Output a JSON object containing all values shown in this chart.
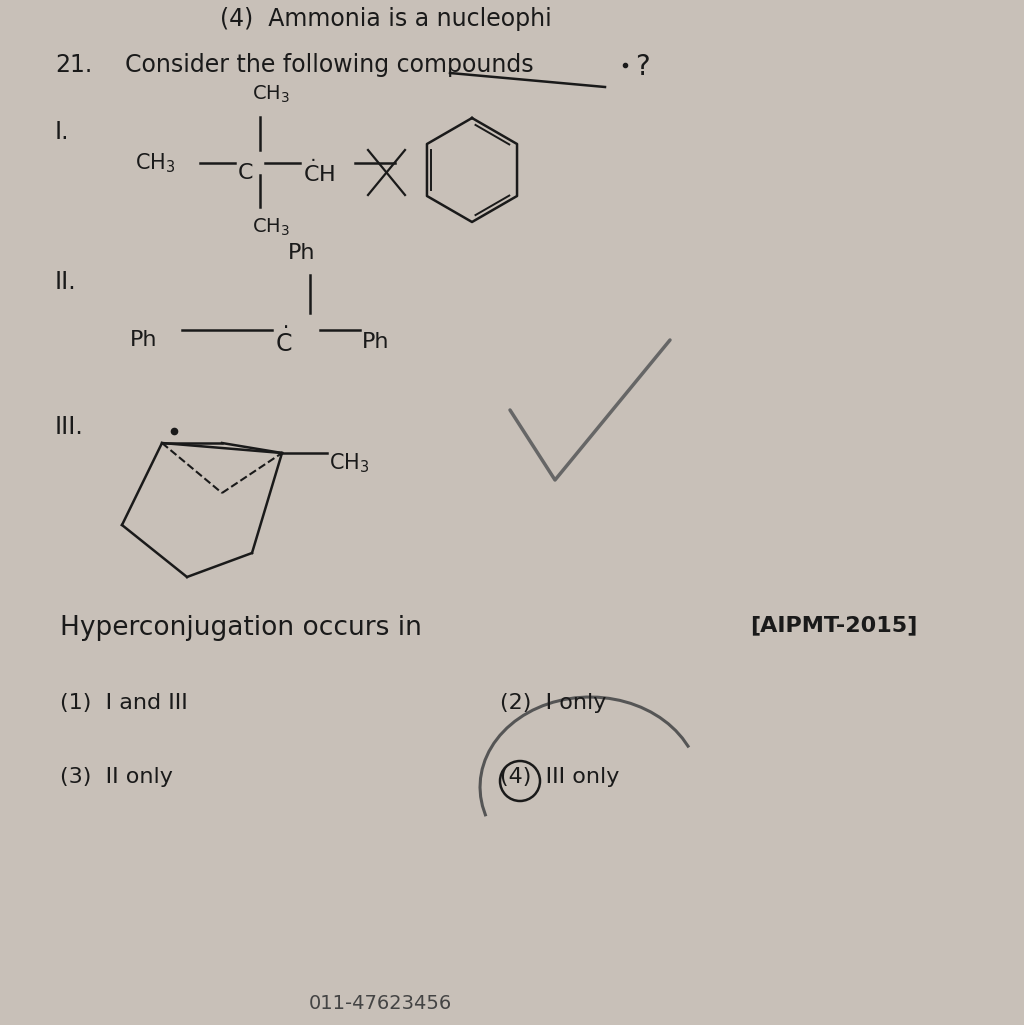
{
  "bg_color": "#c8c0b8",
  "text_color": "#1a1a1a",
  "font_size_main": 17,
  "font_size_label": 17,
  "font_size_chem": 15,
  "font_size_opt": 16,
  "title_number": "21.",
  "title_text": "Consider the following compounds",
  "question_mark": "?",
  "top_text_left": "(4)  Ammonia is a nucleophi",
  "hyperconj_text": "Hyperconjugation occurs in",
  "aipmt_text": "[AIPMT-2015]",
  "opt1": "(1)  I and III",
  "opt2": "(2)  I only",
  "opt3": "(3)  II only",
  "opt4": "(4)  III only"
}
